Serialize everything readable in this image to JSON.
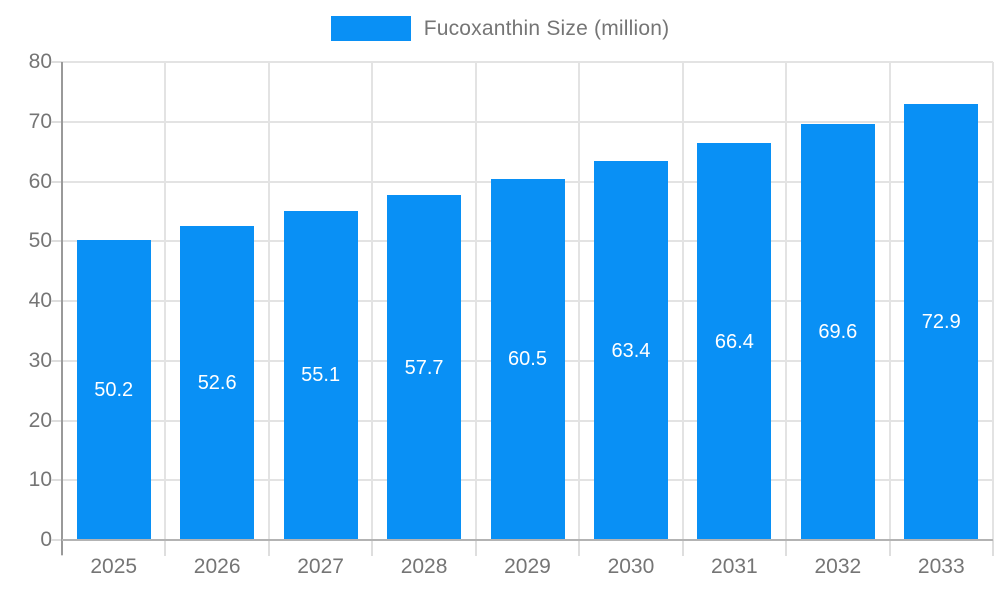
{
  "legend": {
    "label": "Fucoxanthin Size (million)"
  },
  "colors": {
    "bar": "#0990f5",
    "grid": "#e3e3e3",
    "tick": "#dedede",
    "x_axis": "#b3b3b3",
    "y_axis": "#999999",
    "axis_text": "#757575",
    "value_label_text": "#ffffff",
    "background": "#ffffff"
  },
  "chart_data": {
    "type": "bar",
    "title": "",
    "xlabel": "",
    "ylabel": "",
    "categories": [
      "2025",
      "2026",
      "2027",
      "2028",
      "2029",
      "2030",
      "2031",
      "2032",
      "2033"
    ],
    "series": [
      {
        "name": "Fucoxanthin Size (million)",
        "values": [
          50.2,
          52.6,
          55.1,
          57.7,
          60.5,
          63.4,
          66.4,
          69.6,
          72.9
        ]
      }
    ],
    "value_labels": [
      "50.2",
      "52.6",
      "55.1",
      "57.7",
      "60.5",
      "63.4",
      "66.4",
      "69.6",
      "72.9"
    ],
    "value_label_position": "inside-center",
    "ylim": [
      0,
      80
    ],
    "ytick_step": 10,
    "ytick_labels": [
      "0",
      "10",
      "20",
      "30",
      "40",
      "50",
      "60",
      "70",
      "80"
    ],
    "grid": true,
    "legend_position": "top-center"
  }
}
